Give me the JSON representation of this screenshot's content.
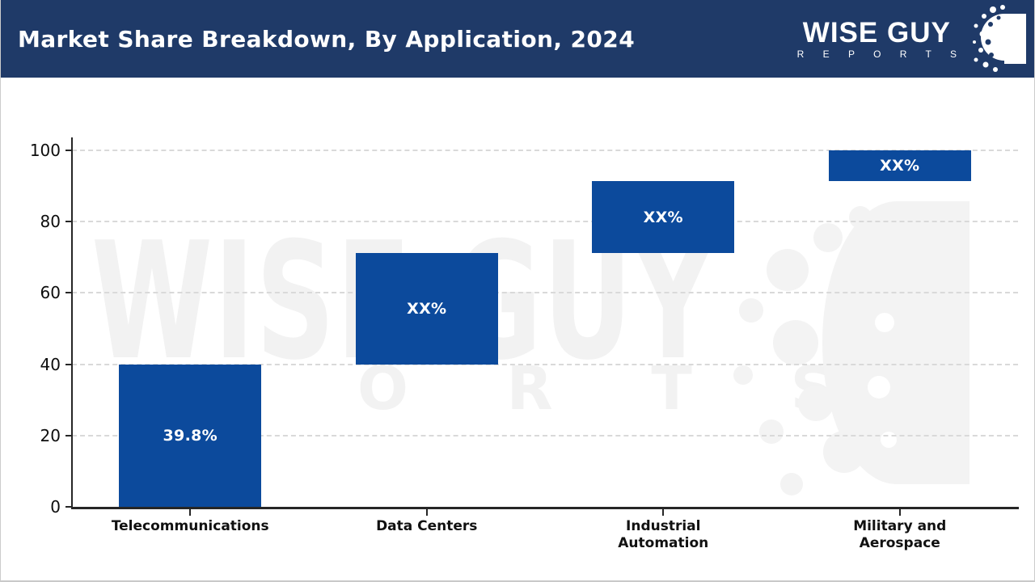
{
  "header": {
    "title": "Market Share Breakdown, By Application, 2024",
    "bg_color": "#1f3a68",
    "logo": {
      "wordmark": "WISE GUY",
      "subtitle": "R E P O R T S"
    }
  },
  "watermark": {
    "line1": "WISE GUY",
    "line2": "P O R T S"
  },
  "chart_data": {
    "type": "bar",
    "subtype": "floating-waterfall",
    "title": "Market Share Breakdown, By Application, 2024",
    "categories": [
      "Telecommunications",
      "Data Centers",
      "Industrial\nAutomation",
      "Military and\nAerospace"
    ],
    "series": [
      {
        "name": "Market Share",
        "base": [
          0,
          39.8,
          71.2,
          91.3
        ],
        "top": [
          39.8,
          71.2,
          91.3,
          100
        ],
        "segment_values": [
          39.8,
          31.4,
          20.1,
          8.7
        ]
      }
    ],
    "bar_labels": [
      "39.8%",
      "XX%",
      "XX%",
      "XX%"
    ],
    "xlabel": "",
    "ylabel": "",
    "ylim": [
      0,
      100
    ],
    "yticks": [
      0,
      20,
      40,
      60,
      80,
      100
    ],
    "grid": "horizontal-dashed",
    "legend": "none",
    "bar_color": "#0c4a9c",
    "bar_label_color": "#ffffff",
    "axis_color": "#262626",
    "grid_color": "#d9d9d9"
  }
}
